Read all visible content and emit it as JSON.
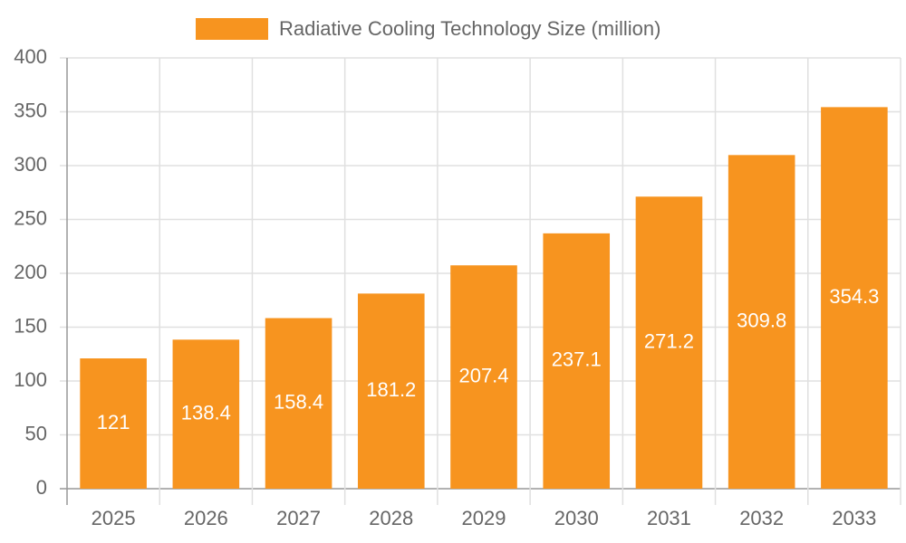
{
  "chart_data": {
    "type": "bar",
    "categories": [
      "2025",
      "2026",
      "2027",
      "2028",
      "2029",
      "2030",
      "2031",
      "2032",
      "2033"
    ],
    "series": [
      {
        "name": "Radiative Cooling Technology Size (million)",
        "color": "#f7941f",
        "values": [
          121,
          138.4,
          158.4,
          181.2,
          207.4,
          237.1,
          271.2,
          309.8,
          354.3
        ]
      }
    ],
    "ylim": [
      0,
      400
    ],
    "yticks": [
      0,
      50,
      100,
      150,
      200,
      250,
      300,
      350,
      400
    ],
    "grid": true,
    "legend": "top"
  }
}
